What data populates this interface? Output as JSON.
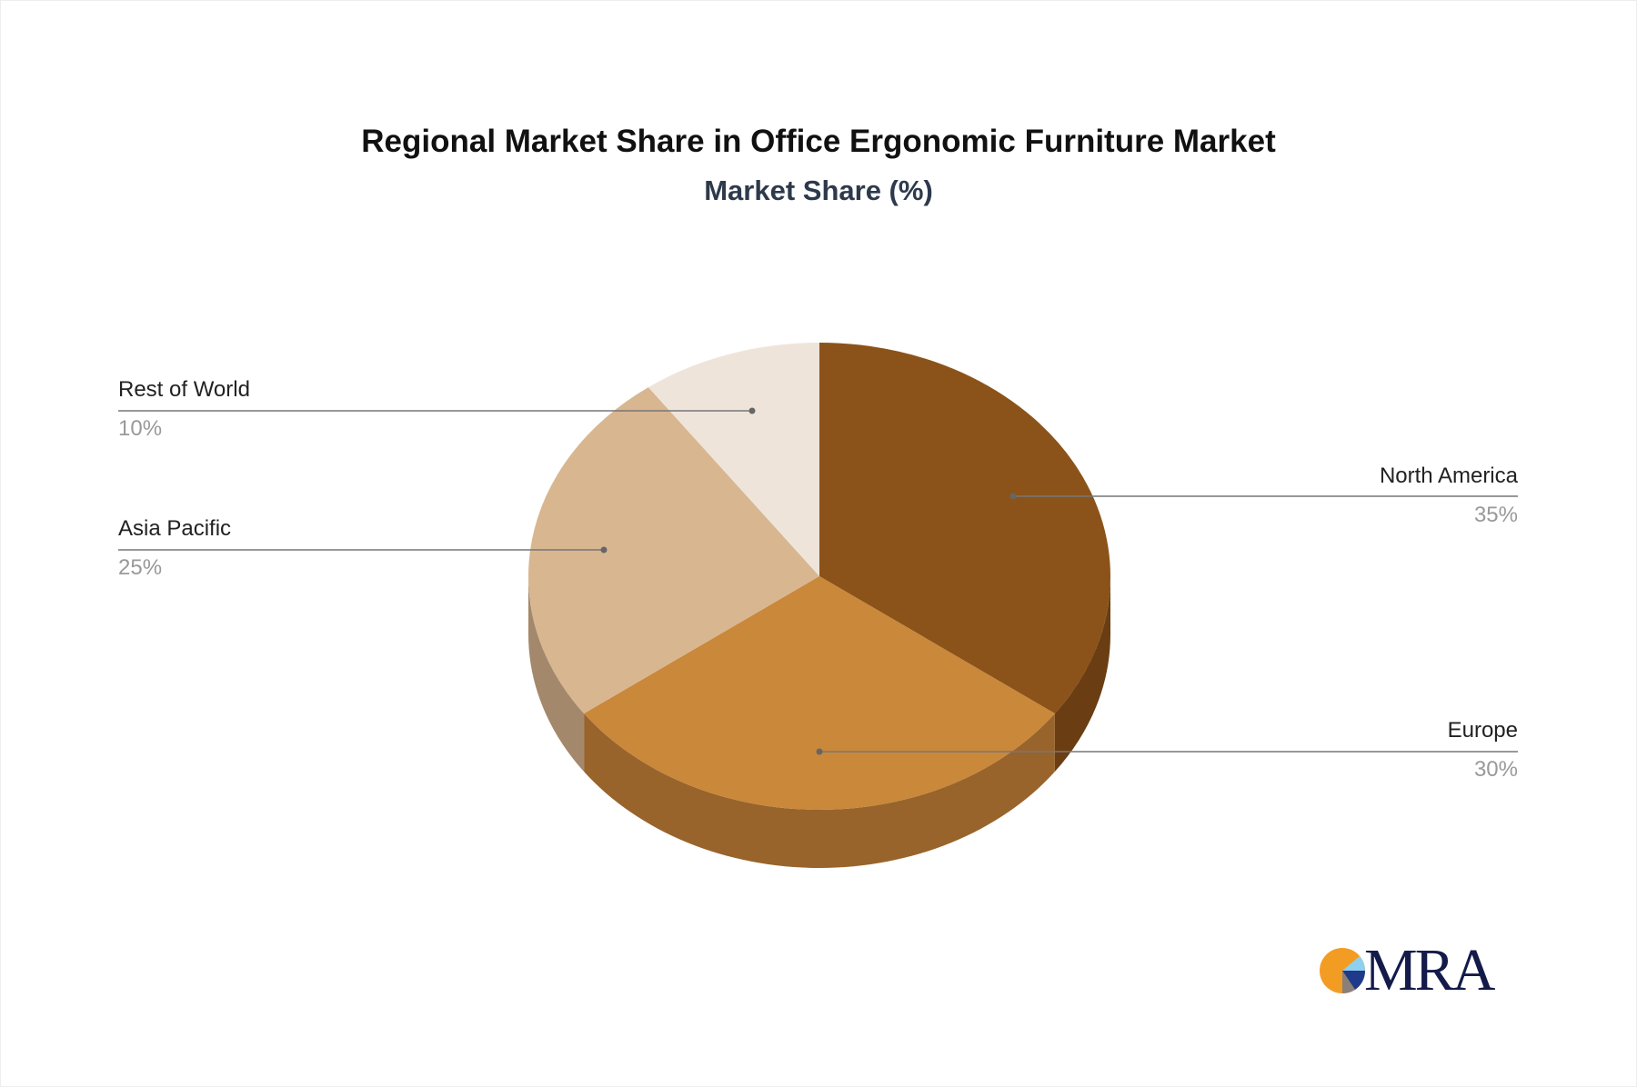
{
  "chart_data": {
    "type": "pie",
    "title": "Regional Market Share in Office Ergonomic Furniture Market",
    "subtitle": "Market Share (%)",
    "three_d": true,
    "slices": [
      {
        "label": "North America",
        "value": 35,
        "display": "35%",
        "color": "#8B5319",
        "side_color": "#6A3E12"
      },
      {
        "label": "Europe",
        "value": 30,
        "display": "30%",
        "color": "#C9883A",
        "side_color": "#98642B"
      },
      {
        "label": "Asia Pacific",
        "value": 25,
        "display": "25%",
        "color": "#D8B690",
        "side_color": "#A3886B"
      },
      {
        "label": "Rest of World",
        "value": 10,
        "display": "10%",
        "color": "#EEE4DA",
        "side_color": "#BDB3A9"
      }
    ]
  },
  "logo": {
    "text": "MRA",
    "colors": [
      "#F39C24",
      "#8ED0F0",
      "#1F3A8A",
      "#8A8078"
    ]
  }
}
